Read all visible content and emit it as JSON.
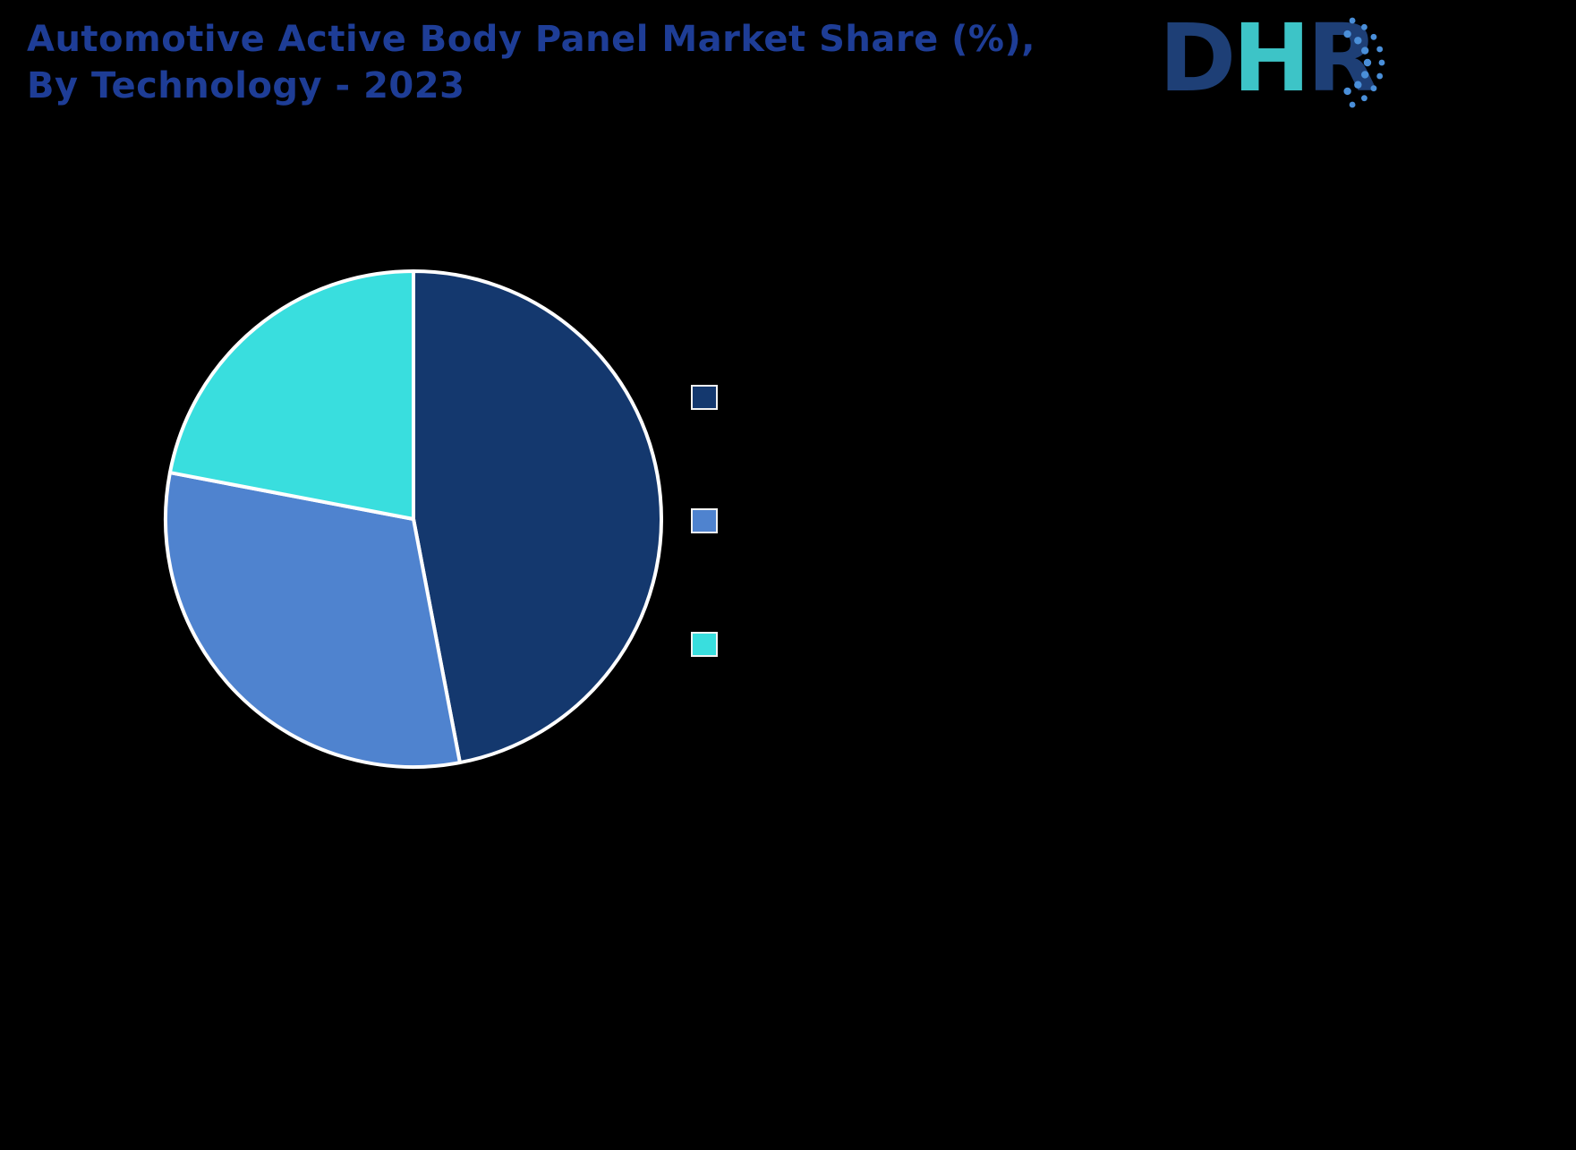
{
  "title": {
    "line1": "Automotive Active Body Panel Market Share (%),",
    "line2": "By Technology - 2023"
  },
  "logo": {
    "letters": [
      {
        "char": "D",
        "color": "#1e3f76"
      },
      {
        "char": "H",
        "color": "#3dc4c7"
      },
      {
        "char": "R",
        "color": "#1e3f76"
      }
    ],
    "dot_color": "#4a8fd9"
  },
  "chart_data": {
    "type": "pie",
    "title": "Automotive Active Body Panel Market Share (%), By Technology - 2023",
    "start_angle_deg": 0,
    "direction": "clockwise",
    "legend_position": "right",
    "legend_labels_visible": false,
    "slices": [
      {
        "value": 47,
        "color": "#14386e"
      },
      {
        "value": 31,
        "color": "#4f83cf"
      },
      {
        "value": 22,
        "color": "#39dede"
      }
    ],
    "outline_color": "#ffffff"
  },
  "legend": {
    "items": [
      {
        "color": "#14386e"
      },
      {
        "color": "#4f83cf"
      },
      {
        "color": "#39dede"
      }
    ]
  }
}
